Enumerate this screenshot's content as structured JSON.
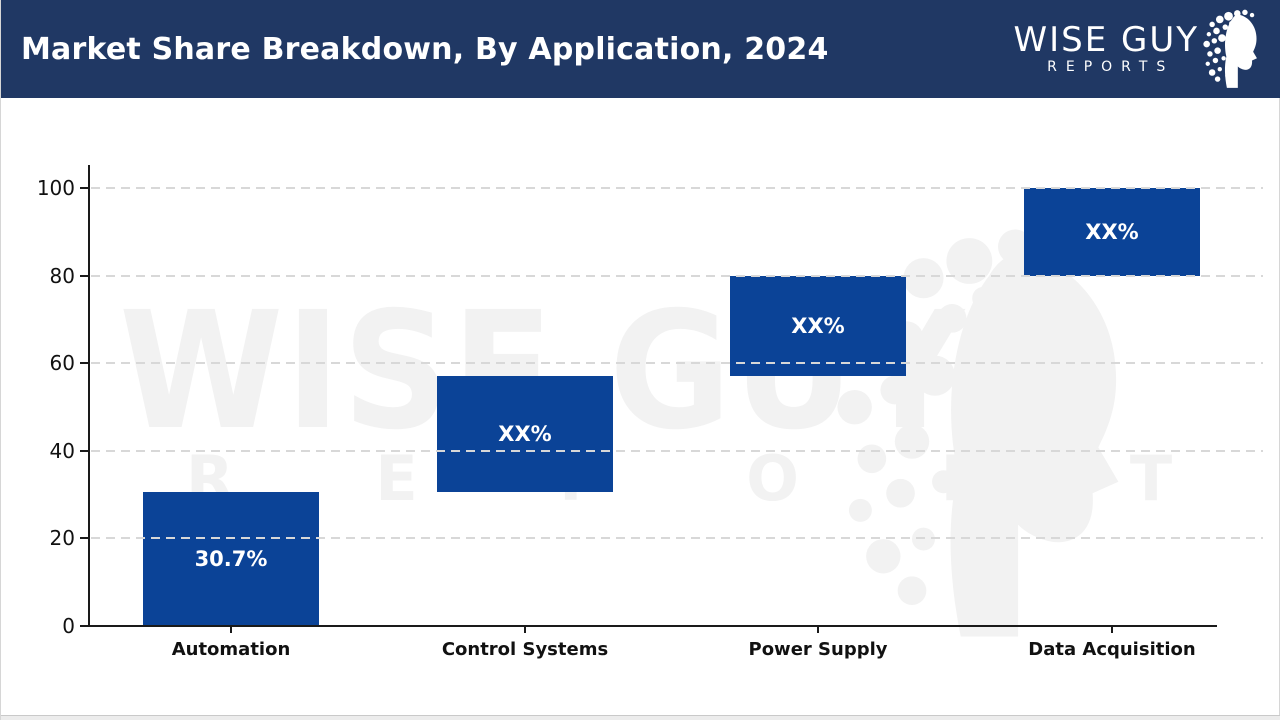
{
  "header": {
    "title": "Market Share Breakdown, By Application, 2024",
    "logo": {
      "line1": "WISE GUY",
      "line2": "REPORTS"
    }
  },
  "watermark": {
    "line1": "WISE GUY",
    "line2": "R E P O R T S"
  },
  "chart_data": {
    "type": "bar",
    "variant": "waterfall",
    "title": "Market Share Breakdown, By Application, 2024",
    "xlabel": "",
    "ylabel": "",
    "ylim": [
      0,
      100
    ],
    "yticks": [
      0,
      20,
      40,
      60,
      80,
      100
    ],
    "grid": "horizontal-dashed",
    "legend": "none",
    "categories": [
      "Automation",
      "Control Systems",
      "Power Supply",
      "Data Acquisition"
    ],
    "segments": [
      {
        "category": "Automation",
        "base": 0,
        "top": 30.7,
        "value": 30.7,
        "label": "30.7%"
      },
      {
        "category": "Control Systems",
        "base": 30.7,
        "top": 57,
        "value": 26.3,
        "label": "XX%"
      },
      {
        "category": "Power Supply",
        "base": 57,
        "top": 80,
        "value": 23,
        "label": "XX%"
      },
      {
        "category": "Data Acquisition",
        "base": 80,
        "top": 100,
        "value": 20,
        "label": "XX%"
      }
    ],
    "bar_color": "#0b4397",
    "bar_label_color": "#ffffff",
    "header_color": "#203864",
    "watermark_color": "#f2f2f2"
  }
}
